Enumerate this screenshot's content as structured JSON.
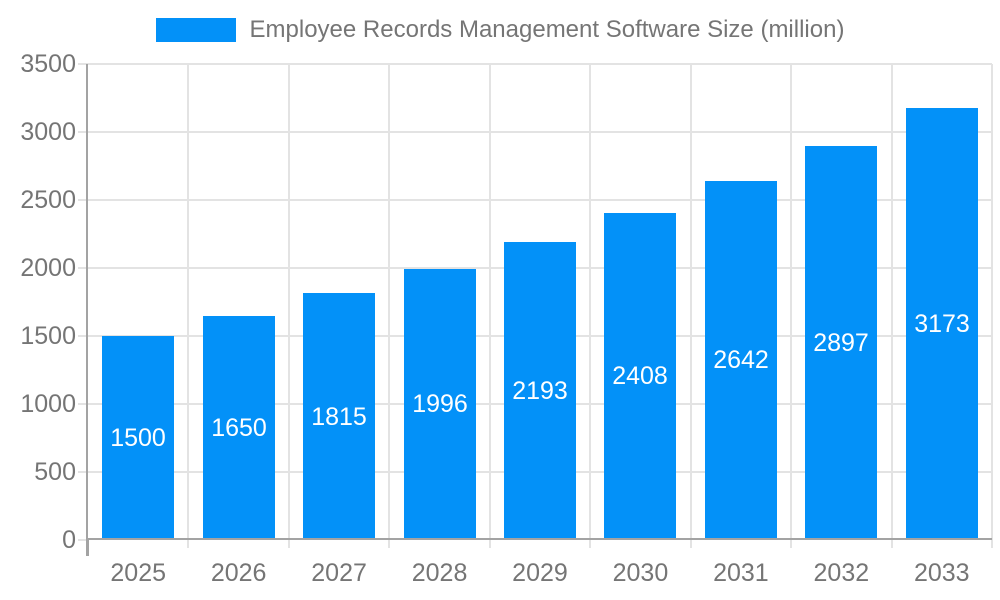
{
  "chart_data": {
    "type": "bar",
    "title": "Employee Records Management Software Size (million)",
    "categories": [
      "2025",
      "2026",
      "2027",
      "2028",
      "2029",
      "2030",
      "2031",
      "2032",
      "2033"
    ],
    "values": [
      1500,
      1650,
      1815,
      1996,
      2193,
      2408,
      2642,
      2897,
      3173
    ],
    "xlabel": "",
    "ylabel": "",
    "ylim": [
      0,
      3500
    ],
    "ytick_step": 500,
    "grid": true,
    "legend_position": "top-center",
    "colors": {
      "bar": "#0391f8",
      "value_label": "#ffffff",
      "grid": "#e3e3e3",
      "axis": "#a3a3a3",
      "text": "#757575",
      "background": "#ffffff"
    }
  }
}
